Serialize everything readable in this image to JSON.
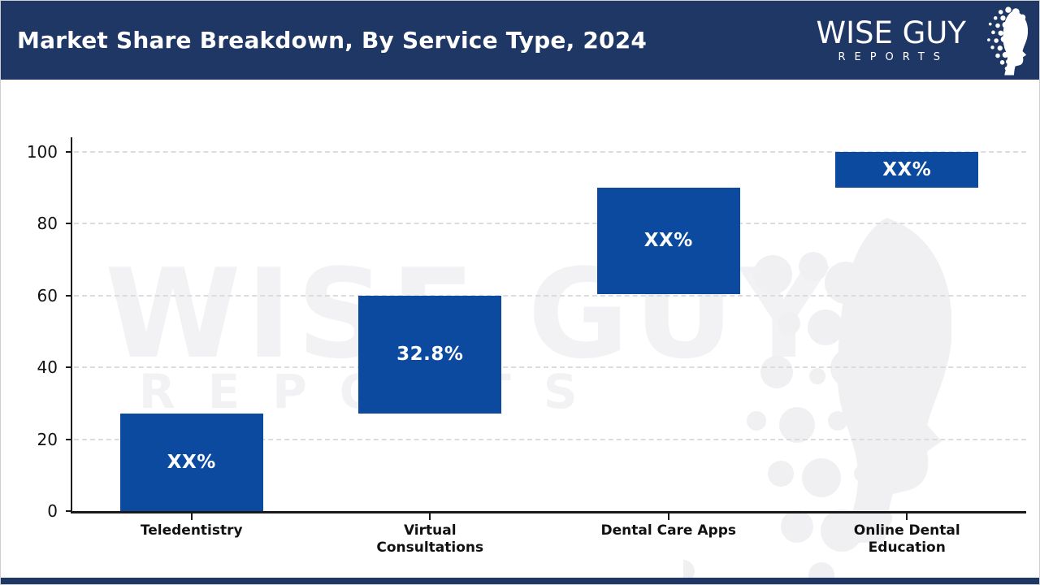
{
  "header": {
    "title": "Market Share Breakdown, By Service Type, 2024",
    "logo": {
      "line1": "WISE GUY",
      "line2": "REPORTS"
    }
  },
  "watermark": {
    "line1": "WISE GUY",
    "line2": "REPORTS"
  },
  "colors": {
    "header_bg": "#1f3765",
    "bar": "#0b4a9e",
    "grid": "#dcdcdc",
    "axis": "#1a1a1a",
    "bar_label": "#ffffff",
    "watermark": "#f2f2f4"
  },
  "chart_data": {
    "type": "bar",
    "subtype": "floating-waterfall",
    "title": "Market Share Breakdown, By Service Type, 2024",
    "categories": [
      "Teledentistry",
      "Virtual Consultations",
      "Dental Care Apps",
      "Online Dental Education"
    ],
    "category_lines": [
      [
        "Teledentistry"
      ],
      [
        "Virtual",
        "Consultations"
      ],
      [
        "Dental Care Apps"
      ],
      [
        "Online Dental",
        "Education"
      ]
    ],
    "segments": [
      {
        "category": "Teledentistry",
        "start": 0,
        "end": 27.2,
        "label": "XX%"
      },
      {
        "category": "Virtual Consultations",
        "start": 27.2,
        "end": 60,
        "label": "32.8%"
      },
      {
        "category": "Dental Care Apps",
        "start": 60.5,
        "end": 90,
        "label": "XX%"
      },
      {
        "category": "Online Dental Education",
        "start": 90,
        "end": 100,
        "label": "XX%"
      }
    ],
    "xlabel": "",
    "ylabel": "",
    "ylim": [
      0,
      100
    ],
    "yticks": [
      0,
      20,
      40,
      60,
      80,
      100
    ],
    "grid": "dashed-horizontal",
    "legend": "none"
  }
}
